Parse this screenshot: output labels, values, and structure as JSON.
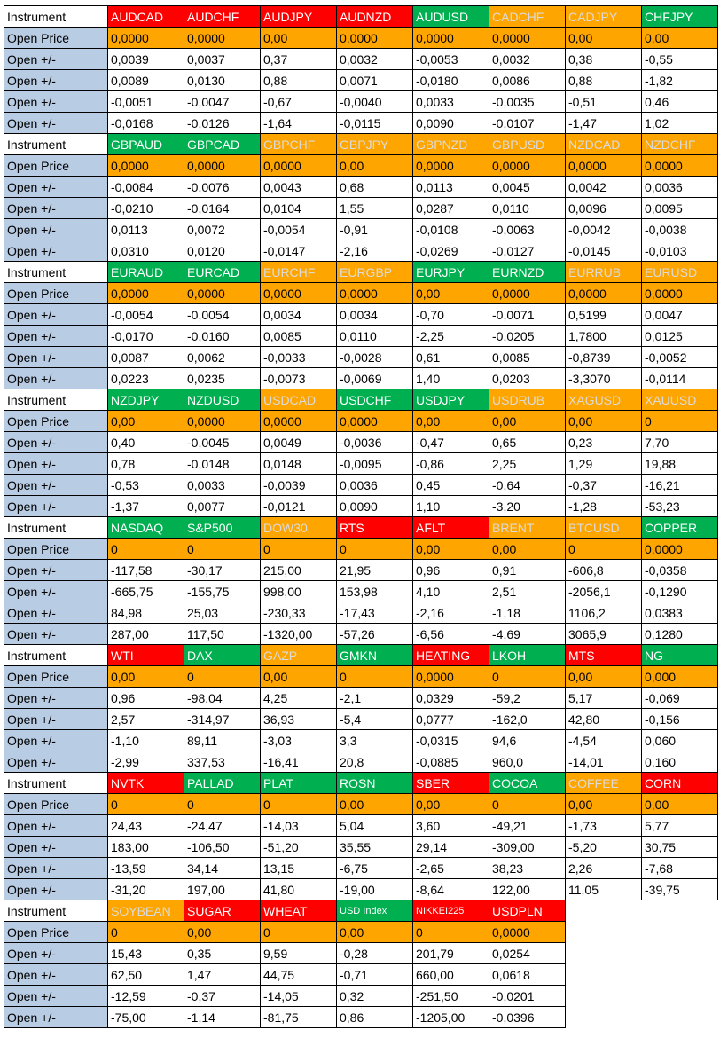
{
  "table": {
    "max_columns": 8,
    "row_labels": {
      "instrument": "Instrument",
      "open_price": "Open Price",
      "open_change": "Open +/-"
    }
  },
  "colors": {
    "red": "#FF0000",
    "green": "#00B050",
    "orange": "#FFA500",
    "price_bg": "#FFA500",
    "label_bg": "#B8CCE4",
    "grid": "#000000",
    "header_text": {
      "red": "#FFFFFF",
      "green": "#FFFFFF",
      "orange": "#DBDBDB"
    }
  },
  "blocks": [
    {
      "instruments": [
        {
          "name": "AUDCAD",
          "color": "red"
        },
        {
          "name": "AUDCHF",
          "color": "red"
        },
        {
          "name": "AUDJPY",
          "color": "red"
        },
        {
          "name": "AUDNZD",
          "color": "red"
        },
        {
          "name": "AUDUSD",
          "color": "green"
        },
        {
          "name": "CADCHF",
          "color": "orange"
        },
        {
          "name": "CADJPY",
          "color": "orange"
        },
        {
          "name": "CHFJPY",
          "color": "green"
        }
      ],
      "open_price": [
        "0,0000",
        "0,0000",
        "0,00",
        "0,0000",
        "0,0000",
        "0,0000",
        "0,00",
        "0,00"
      ],
      "open_changes": [
        [
          "0,0039",
          "0,0037",
          "0,37",
          "0,0032",
          "-0,0053",
          "0,0032",
          "0,38",
          "-0,55"
        ],
        [
          "0,0089",
          "0,0130",
          "0,88",
          "0,0071",
          "-0,0180",
          "0,0086",
          "0,88",
          "-1,82"
        ],
        [
          "-0,0051",
          "-0,0047",
          "-0,67",
          "-0,0040",
          "0,0033",
          "-0,0035",
          "-0,51",
          "0,46"
        ],
        [
          "-0,0168",
          "-0,0126",
          "-1,64",
          "-0,0115",
          "0,0090",
          "-0,0107",
          "-1,47",
          "1,02"
        ]
      ]
    },
    {
      "instruments": [
        {
          "name": "GBPAUD",
          "color": "green"
        },
        {
          "name": "GBPCAD",
          "color": "green"
        },
        {
          "name": "GBPCHF",
          "color": "orange"
        },
        {
          "name": "GBPJPY",
          "color": "orange"
        },
        {
          "name": "GBPNZD",
          "color": "orange"
        },
        {
          "name": "GBPUSD",
          "color": "orange"
        },
        {
          "name": "NZDCAD",
          "color": "orange"
        },
        {
          "name": "NZDCHF",
          "color": "orange"
        }
      ],
      "open_price": [
        "0,0000",
        "0,0000",
        "0,0000",
        "0,00",
        "0,0000",
        "0,0000",
        "0,0000",
        "0,0000"
      ],
      "open_changes": [
        [
          "-0,0084",
          "-0,0076",
          "0,0043",
          "0,68",
          "0,0113",
          "0,0045",
          "0,0042",
          "0,0036"
        ],
        [
          "-0,0210",
          "-0,0164",
          "0,0104",
          "1,55",
          "0,0287",
          "0,0110",
          "0,0096",
          "0,0095"
        ],
        [
          "0,0113",
          "0,0072",
          "-0,0054",
          "-0,91",
          "-0,0108",
          "-0,0063",
          "-0,0042",
          "-0,0038"
        ],
        [
          "0,0310",
          "0,0120",
          "-0,0147",
          "-2,16",
          "-0,0269",
          "-0,0127",
          "-0,0145",
          "-0,0103"
        ]
      ]
    },
    {
      "instruments": [
        {
          "name": "EURAUD",
          "color": "green"
        },
        {
          "name": "EURCAD",
          "color": "green"
        },
        {
          "name": "EURCHF",
          "color": "orange"
        },
        {
          "name": "EURGBP",
          "color": "orange"
        },
        {
          "name": "EURJPY",
          "color": "green"
        },
        {
          "name": "EURNZD",
          "color": "green"
        },
        {
          "name": "EURRUB",
          "color": "orange"
        },
        {
          "name": "EURUSD",
          "color": "orange"
        }
      ],
      "open_price": [
        "0,0000",
        "0,0000",
        "0,0000",
        "0,0000",
        "0,00",
        "0,0000",
        "0,0000",
        "0,0000"
      ],
      "open_changes": [
        [
          "-0,0054",
          "-0,0054",
          "0,0034",
          "0,0034",
          "-0,70",
          "-0,0071",
          "0,5199",
          "0,0047"
        ],
        [
          "-0,0170",
          "-0,0160",
          "0,0085",
          "0,0110",
          "-2,25",
          "-0,0205",
          "1,7800",
          "0,0125"
        ],
        [
          "0,0087",
          "0,0062",
          "-0,0033",
          "-0,0028",
          "0,61",
          "0,0085",
          "-0,8739",
          "-0,0052"
        ],
        [
          "0,0223",
          "0,0235",
          "-0,0073",
          "-0,0069",
          "1,40",
          "0,0203",
          "-3,3070",
          "-0,0114"
        ]
      ]
    },
    {
      "instruments": [
        {
          "name": "NZDJPY",
          "color": "green"
        },
        {
          "name": "NZDUSD",
          "color": "green"
        },
        {
          "name": "USDCAD",
          "color": "orange"
        },
        {
          "name": "USDCHF",
          "color": "green"
        },
        {
          "name": "USDJPY",
          "color": "green"
        },
        {
          "name": "USDRUB",
          "color": "orange"
        },
        {
          "name": "XAGUSD",
          "color": "orange"
        },
        {
          "name": "XAUUSD",
          "color": "orange"
        }
      ],
      "open_price": [
        "0,00",
        "0,0000",
        "0,0000",
        "0,0000",
        "0,00",
        "0,00",
        "0,00",
        "0"
      ],
      "open_changes": [
        [
          "0,40",
          "-0,0045",
          "0,0049",
          "-0,0036",
          "-0,47",
          "0,65",
          "0,23",
          "7,70"
        ],
        [
          "0,78",
          "-0,0148",
          "0,0148",
          "-0,0095",
          "-0,86",
          "2,25",
          "1,29",
          "19,88"
        ],
        [
          "-0,53",
          "0,0033",
          "-0,0039",
          "0,0036",
          "0,45",
          "-0,64",
          "-0,37",
          "-16,21"
        ],
        [
          "-1,37",
          "0,0077",
          "-0,0121",
          "0,0090",
          "1,10",
          "-3,20",
          "-1,28",
          "-53,23"
        ]
      ]
    },
    {
      "instruments": [
        {
          "name": "NASDAQ",
          "color": "green"
        },
        {
          "name": "S&P500",
          "color": "green"
        },
        {
          "name": "DOW30",
          "color": "orange"
        },
        {
          "name": "RTS",
          "color": "red"
        },
        {
          "name": "AFLT",
          "color": "red"
        },
        {
          "name": "BRENT",
          "color": "orange"
        },
        {
          "name": "BTCUSD",
          "color": "orange"
        },
        {
          "name": "COPPER",
          "color": "green"
        }
      ],
      "open_price": [
        "0",
        "0",
        "0",
        "0",
        "0,00",
        "0,00",
        "0",
        "0,0000"
      ],
      "open_changes": [
        [
          "-117,58",
          "-30,17",
          "215,00",
          "21,95",
          "0,96",
          "0,91",
          "-606,8",
          "-0,0358"
        ],
        [
          "-665,75",
          "-155,75",
          "998,00",
          "153,98",
          "4,10",
          "2,51",
          "-2056,1",
          "-0,1290"
        ],
        [
          "84,98",
          "25,03",
          "-230,33",
          "-17,43",
          "-2,16",
          "-1,18",
          "1106,2",
          "0,0383"
        ],
        [
          "287,00",
          "117,50",
          "-1320,00",
          "-57,26",
          "-6,56",
          "-4,69",
          "3065,9",
          "0,1280"
        ]
      ]
    },
    {
      "instruments": [
        {
          "name": "WTI",
          "color": "red"
        },
        {
          "name": "DAX",
          "color": "green"
        },
        {
          "name": "GAZP",
          "color": "orange"
        },
        {
          "name": "GMKN",
          "color": "green"
        },
        {
          "name": "HEATING",
          "color": "red"
        },
        {
          "name": "LKOH",
          "color": "green"
        },
        {
          "name": "MTS",
          "color": "red"
        },
        {
          "name": "NG",
          "color": "green"
        }
      ],
      "open_price": [
        "0,00",
        "0",
        "0,00",
        "0",
        "0,0000",
        "0",
        "0,00",
        "0,000"
      ],
      "open_changes": [
        [
          "0,96",
          "-98,04",
          "4,25",
          "-2,1",
          "0,0329",
          "-59,2",
          "5,17",
          "-0,069"
        ],
        [
          "2,57",
          "-314,97",
          "36,93",
          "-5,4",
          "0,0777",
          "-162,0",
          "42,80",
          "-0,156"
        ],
        [
          "-1,10",
          "89,11",
          "-3,03",
          "3,3",
          "-0,0315",
          "94,6",
          "-4,54",
          "0,060"
        ],
        [
          "-2,99",
          "337,53",
          "-16,41",
          "20,8",
          "-0,0885",
          "960,0",
          "-14,01",
          "0,160"
        ]
      ]
    },
    {
      "instruments": [
        {
          "name": "NVTK",
          "color": "red"
        },
        {
          "name": "PALLAD",
          "color": "green"
        },
        {
          "name": "PLAT",
          "color": "green"
        },
        {
          "name": "ROSN",
          "color": "green"
        },
        {
          "name": "SBER",
          "color": "red"
        },
        {
          "name": "COCOA",
          "color": "green"
        },
        {
          "name": "COFFEE",
          "color": "orange"
        },
        {
          "name": "CORN",
          "color": "red"
        }
      ],
      "open_price": [
        "0",
        "0",
        "0",
        "0,00",
        "0,00",
        "0",
        "0,00",
        "0,00"
      ],
      "open_changes": [
        [
          "24,43",
          "-24,47",
          "-14,03",
          "5,04",
          "3,60",
          "-49,21",
          "-1,73",
          "5,77"
        ],
        [
          "183,00",
          "-106,50",
          "-51,20",
          "35,55",
          "29,14",
          "-309,00",
          "-5,20",
          "30,75"
        ],
        [
          "-13,59",
          "34,14",
          "13,15",
          "-6,75",
          "-2,65",
          "38,23",
          "2,26",
          "-7,68"
        ],
        [
          "-31,20",
          "197,00",
          "41,80",
          "-19,00",
          "-8,64",
          "122,00",
          "11,05",
          "-39,75"
        ]
      ]
    },
    {
      "instruments": [
        {
          "name": "SOYBEAN",
          "color": "orange"
        },
        {
          "name": "SUGAR",
          "color": "red"
        },
        {
          "name": "WHEAT",
          "color": "red"
        },
        {
          "name": "USD Index",
          "color": "green",
          "small": true
        },
        {
          "name": "NIKKEI225",
          "color": "red",
          "small": true
        },
        {
          "name": "USDPLN",
          "color": "red"
        }
      ],
      "open_price": [
        "0",
        "0,00",
        "0",
        "0,00",
        "0",
        "0,0000"
      ],
      "open_changes": [
        [
          "15,43",
          "0,35",
          "9,59",
          "-0,28",
          "201,79",
          "0,0254"
        ],
        [
          "62,50",
          "1,47",
          "44,75",
          "-0,71",
          "660,00",
          "0,0618"
        ],
        [
          "-12,59",
          "-0,37",
          "-14,05",
          "0,32",
          "-251,50",
          "-0,0201"
        ],
        [
          "-75,00",
          "-1,14",
          "-81,75",
          "0,86",
          "-1205,00",
          "-0,0396"
        ]
      ]
    }
  ]
}
